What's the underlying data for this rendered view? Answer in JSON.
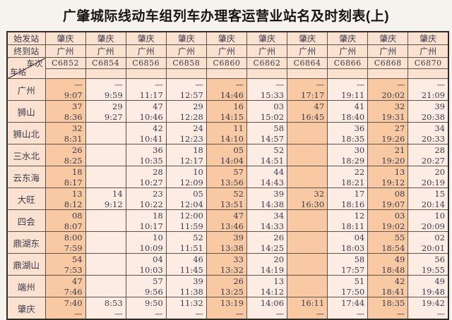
{
  "title": "广肇城际线动车组列车办理客运营业站名及时刻表(上)",
  "header": {
    "origin_label": "始发站",
    "terminal_label": "终到站",
    "train_no_label": "车次",
    "station_label": "车站",
    "origins": [
      "肇庆",
      "肇庆",
      "肇庆",
      "肇庆",
      "肇庆",
      "肇庆",
      "肇庆",
      "肇庆",
      "肇庆",
      "肇庆"
    ],
    "terminals": [
      "广州",
      "广州",
      "广州",
      "广州",
      "广州",
      "广州",
      "广州",
      "广州",
      "广州",
      "广州"
    ],
    "train_numbers": [
      "C6852",
      "C6854",
      "C6856",
      "C6858",
      "C6860",
      "C6862",
      "C6864",
      "C6866",
      "C6868",
      "C6870"
    ]
  },
  "rows": [
    {
      "station": "广州",
      "cells": [
        [
          "—",
          "9:07"
        ],
        [
          "—",
          "9:59"
        ],
        [
          "—",
          "11:17"
        ],
        [
          "—",
          "12:57"
        ],
        [
          "—",
          "14:46"
        ],
        [
          "—",
          "15:33"
        ],
        [
          "—",
          "17:17"
        ],
        [
          "—",
          "19:11"
        ],
        [
          "—",
          "20:02"
        ],
        [
          "—",
          "21:09"
        ]
      ]
    },
    {
      "station": "狮山",
      "cells": [
        [
          "37",
          "8:36"
        ],
        [
          "29",
          "9:27"
        ],
        [
          "47",
          "10:46"
        ],
        [
          "29",
          "12:28"
        ],
        [
          "16",
          "14:15"
        ],
        [
          "03",
          "15:02"
        ],
        [
          "47",
          "16:45"
        ],
        [
          "41",
          "18:40"
        ],
        [
          "32",
          "19:31"
        ],
        [
          "39",
          "20:38"
        ]
      ]
    },
    {
      "station": "狮山北",
      "cells": [
        [
          "32",
          "8:31"
        ],
        [
          "",
          ""
        ],
        [
          "42",
          "10:41"
        ],
        [
          "24",
          "12:23"
        ],
        [
          "11",
          "14:10"
        ],
        [
          "58",
          "14:57"
        ],
        [
          "",
          ""
        ],
        [
          "36",
          "18:35"
        ],
        [
          "27",
          "19:26"
        ],
        [
          "34",
          "20:33"
        ]
      ]
    },
    {
      "station": "三水北",
      "cells": [
        [
          "26",
          "8:25"
        ],
        [
          "",
          ""
        ],
        [
          "36",
          "10:35"
        ],
        [
          "18",
          "12:17"
        ],
        [
          "05",
          "14:04"
        ],
        [
          "52",
          "14:51"
        ],
        [
          "",
          ""
        ],
        [
          "30",
          "18:29"
        ],
        [
          "21",
          "19:20"
        ],
        [
          "28",
          "20:27"
        ]
      ]
    },
    {
      "station": "云东海",
      "cells": [
        [
          "18",
          "8:17"
        ],
        [
          "",
          ""
        ],
        [
          "28",
          "10:27"
        ],
        [
          "10",
          "12:09"
        ],
        [
          "57",
          "13:56"
        ],
        [
          "44",
          "14:43"
        ],
        [
          "",
          ""
        ],
        [
          "22",
          "18:21"
        ],
        [
          "13",
          "19:12"
        ],
        [
          "20",
          "20:19"
        ]
      ]
    },
    {
      "station": "大旺",
      "cells": [
        [
          "13",
          "8:12"
        ],
        [
          "14",
          "9:12"
        ],
        [
          "23",
          "10:22"
        ],
        [
          "05",
          "12:04"
        ],
        [
          "52",
          "13:51"
        ],
        [
          "39",
          "14:38"
        ],
        [
          "32",
          "16:30"
        ],
        [
          "17",
          "18:16"
        ],
        [
          "08",
          "19:07"
        ],
        [
          "15",
          "20:14"
        ]
      ]
    },
    {
      "station": "四会",
      "cells": [
        [
          "08",
          "8:07"
        ],
        [
          "",
          ""
        ],
        [
          "18",
          "10:17"
        ],
        [
          "12:00",
          "11:59"
        ],
        [
          "47",
          "13:46"
        ],
        [
          "34",
          "14:33"
        ],
        [
          "",
          ""
        ],
        [
          "12",
          "18:11"
        ],
        [
          "03",
          "19:02"
        ],
        [
          "10",
          "20:09"
        ]
      ]
    },
    {
      "station": "鼎湖东",
      "cells": [
        [
          "8:00",
          "7:59"
        ],
        [
          "",
          ""
        ],
        [
          "10",
          "10:09"
        ],
        [
          "52",
          "11:51"
        ],
        [
          "39",
          "13:38"
        ],
        [
          "26",
          "14:25"
        ],
        [
          "",
          ""
        ],
        [
          "04",
          "18:03"
        ],
        [
          "55",
          "18:54"
        ],
        [
          "02",
          "20:01"
        ]
      ]
    },
    {
      "station": "鼎湖山",
      "cells": [
        [
          "54",
          "7:53"
        ],
        [
          "",
          ""
        ],
        [
          "04",
          "10:03"
        ],
        [
          "46",
          "11:45"
        ],
        [
          "33",
          "13:32"
        ],
        [
          "20",
          "14:19"
        ],
        [
          "",
          ""
        ],
        [
          "58",
          "17:57"
        ],
        [
          "49",
          "18:48"
        ],
        [
          "56",
          "19:55"
        ]
      ]
    },
    {
      "station": "端州",
      "cells": [
        [
          "47",
          "7:46"
        ],
        [
          "",
          ""
        ],
        [
          "57",
          "9:56"
        ],
        [
          "39",
          "11:38"
        ],
        [
          "26",
          "13:25"
        ],
        [
          "13",
          "14:12"
        ],
        [
          "",
          ""
        ],
        [
          "51",
          "17:50"
        ],
        [
          "42",
          "18:41"
        ],
        [
          "49",
          "19:48"
        ]
      ]
    },
    {
      "station": "肇庆",
      "cells": [
        [
          "7:40",
          "—"
        ],
        [
          "8:53",
          "—"
        ],
        [
          "9:50",
          "—"
        ],
        [
          "11:32",
          "—"
        ],
        [
          "13:19",
          "—"
        ],
        [
          "14:06",
          "—"
        ],
        [
          "16:11",
          "—"
        ],
        [
          "17:44",
          "—"
        ],
        [
          "18:35",
          "—"
        ],
        [
          "19:42",
          "—"
        ]
      ]
    }
  ],
  "colors": {
    "page_bg": "#f6f3ef",
    "table_header_bg": "#fbe1cf",
    "cell_light_bg": "#fdece3",
    "cell_dark_bg": "#f8c9a2",
    "border": "#5d534a",
    "outer_border": "#2f2b27",
    "text": "#3c3c4e",
    "title_text": "#151515",
    "dark_column_indexes": [
      0,
      4,
      6,
      8
    ]
  }
}
